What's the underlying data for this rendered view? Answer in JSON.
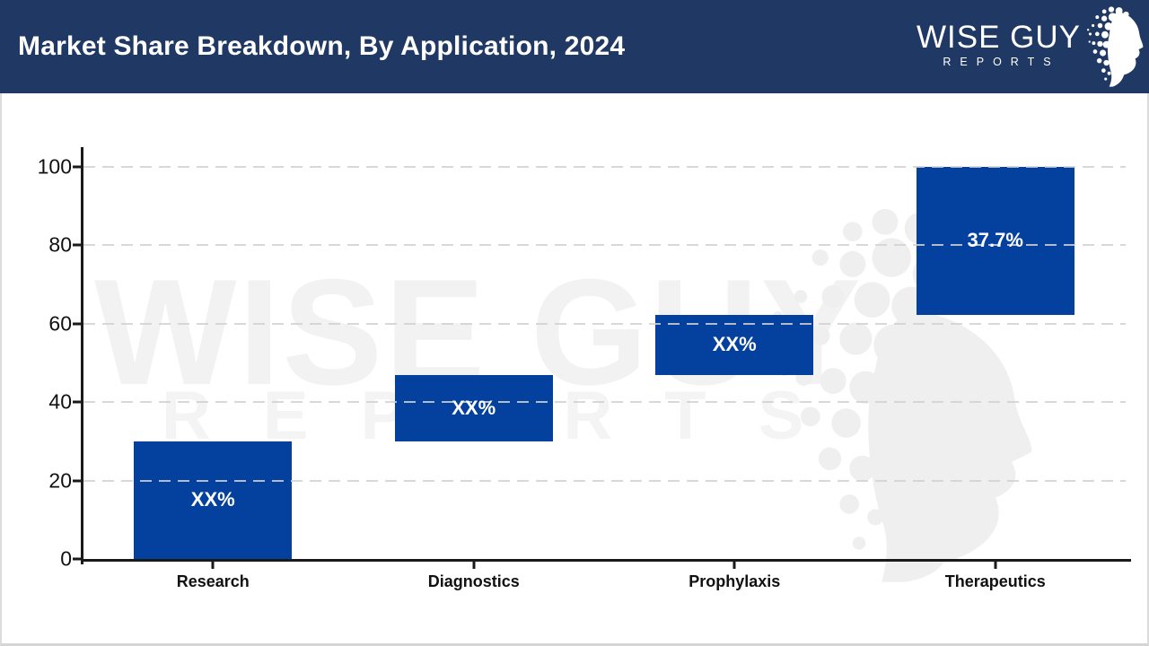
{
  "header": {
    "title": "Market Share Breakdown, By Application, 2024",
    "logo": {
      "line1": "WISE GUY",
      "line2": "REPORTS",
      "icon": "wiseguy-head-icon"
    }
  },
  "watermark": {
    "line1": "WISE GUY",
    "line2": "REPORTS",
    "icon": "wiseguy-head-watermark-icon"
  },
  "colors": {
    "header_bg": "#1F3864",
    "bar": "#04409E",
    "axis": "#1a1a1a",
    "gridline": "#d9d9d9",
    "watermark": "#f1f1f1"
  },
  "chart_data": {
    "type": "bar",
    "variant": "floating-breakdown-waterfall",
    "title": "Market Share Breakdown, By Application, 2024",
    "categories": [
      "Research",
      "Diagnostics",
      "Prophylaxis",
      "Therapeutics"
    ],
    "segments": [
      {
        "category": "Research",
        "start": 0,
        "end": 30,
        "label": "XX%"
      },
      {
        "category": "Diagnostics",
        "start": 30,
        "end": 47,
        "label": "XX%"
      },
      {
        "category": "Prophylaxis",
        "start": 47,
        "end": 62.3,
        "label": "XX%"
      },
      {
        "category": "Therapeutics",
        "start": 62.3,
        "end": 100,
        "label": "37.7%"
      }
    ],
    "yticks": [
      0,
      20,
      40,
      60,
      80,
      100
    ],
    "ylim": [
      0,
      105
    ],
    "xlabel": "",
    "ylabel": "",
    "grid": "horizontal-dashed",
    "legend": false,
    "bar_color": "#04409E"
  }
}
